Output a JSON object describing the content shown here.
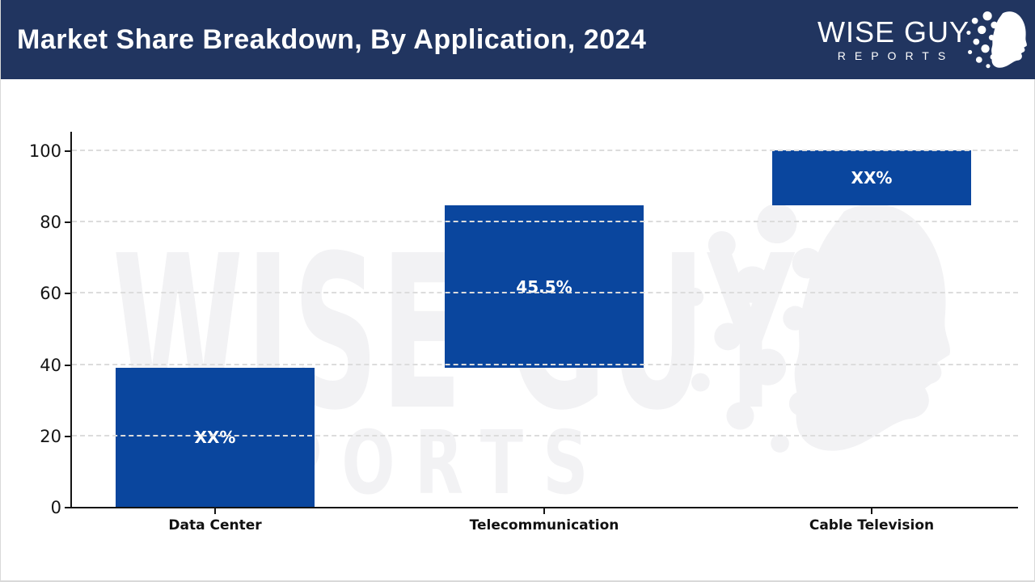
{
  "header": {
    "title": "Market Share Breakdown, By Application, 2024",
    "bg_color": "#213560",
    "logo": {
      "line1": "WISE GUY",
      "line2": "REPORTS"
    }
  },
  "watermark": {
    "line1": "WISE GUY",
    "line2": "REPORTS"
  },
  "chart_data": {
    "type": "bar",
    "subtype": "floating-waterfall",
    "title": "Market Share Breakdown, By Application, 2024",
    "categories": [
      "Data Center",
      "Telecommunication",
      "Cable Television"
    ],
    "segments": [
      {
        "category": "Data Center",
        "start": 0,
        "end": 39,
        "label": "XX%"
      },
      {
        "category": "Telecommunication",
        "start": 39,
        "end": 84.5,
        "label": "45.5%"
      },
      {
        "category": "Cable Television",
        "start": 84.5,
        "end": 100,
        "label": "XX%"
      }
    ],
    "xlabel": "",
    "ylabel": "",
    "y_ticks": [
      0,
      20,
      40,
      60,
      80,
      100
    ],
    "ylim": [
      0,
      100
    ],
    "bar_color": "#0a469e",
    "grid": "horizontal-dashed",
    "legend": "none"
  }
}
